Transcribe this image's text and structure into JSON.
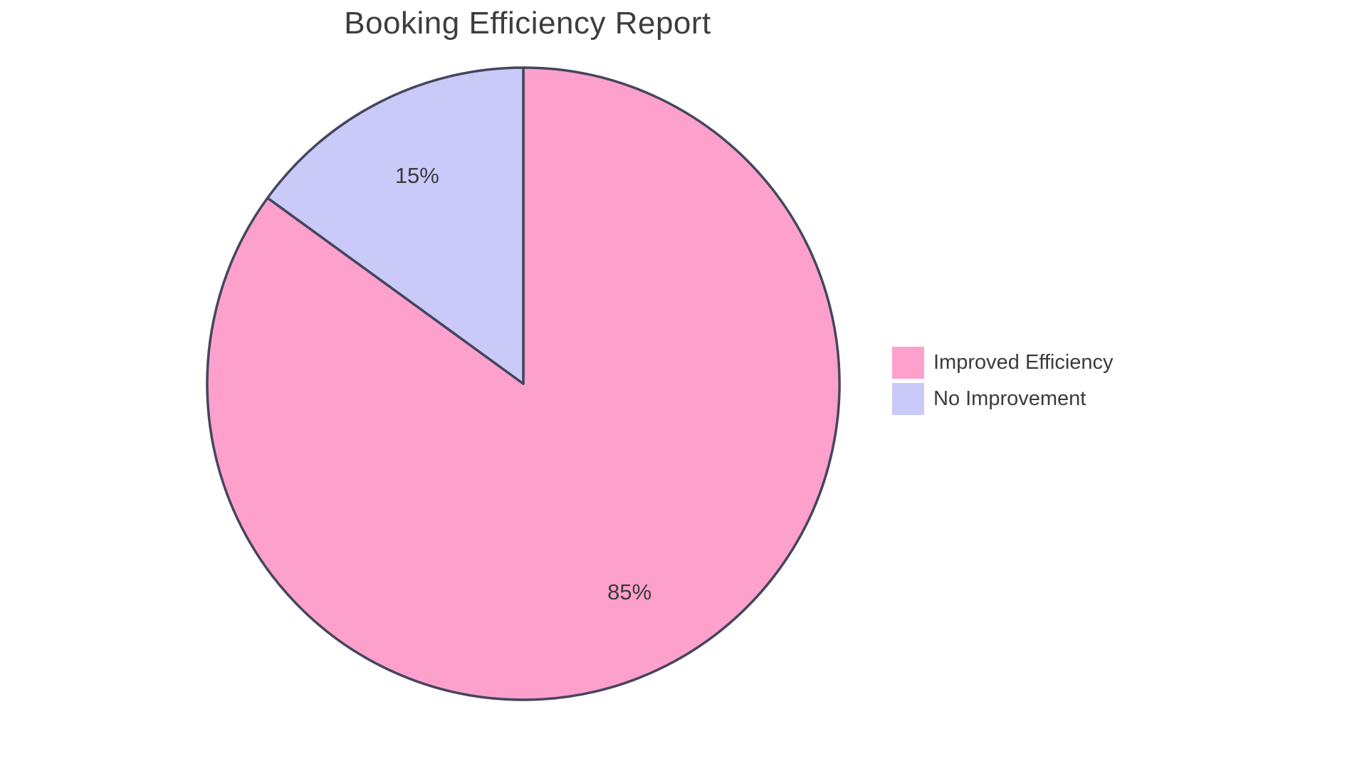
{
  "chart_data": {
    "type": "pie",
    "title": "Booking Efficiency Report",
    "labels": [
      "Improved Efficiency",
      "No Improvement"
    ],
    "values": [
      85,
      15
    ],
    "slice_labels": [
      "85%",
      "15%"
    ],
    "colors": [
      "#FDA1CC",
      "#C9CAF8"
    ],
    "stroke_color": "#45455E",
    "stroke_width": 3.5,
    "text_color": "#3B3B3B",
    "start_angle_deg": 0,
    "direction": "clockwise",
    "legend_position": "right",
    "background": "#FFFFFF"
  }
}
